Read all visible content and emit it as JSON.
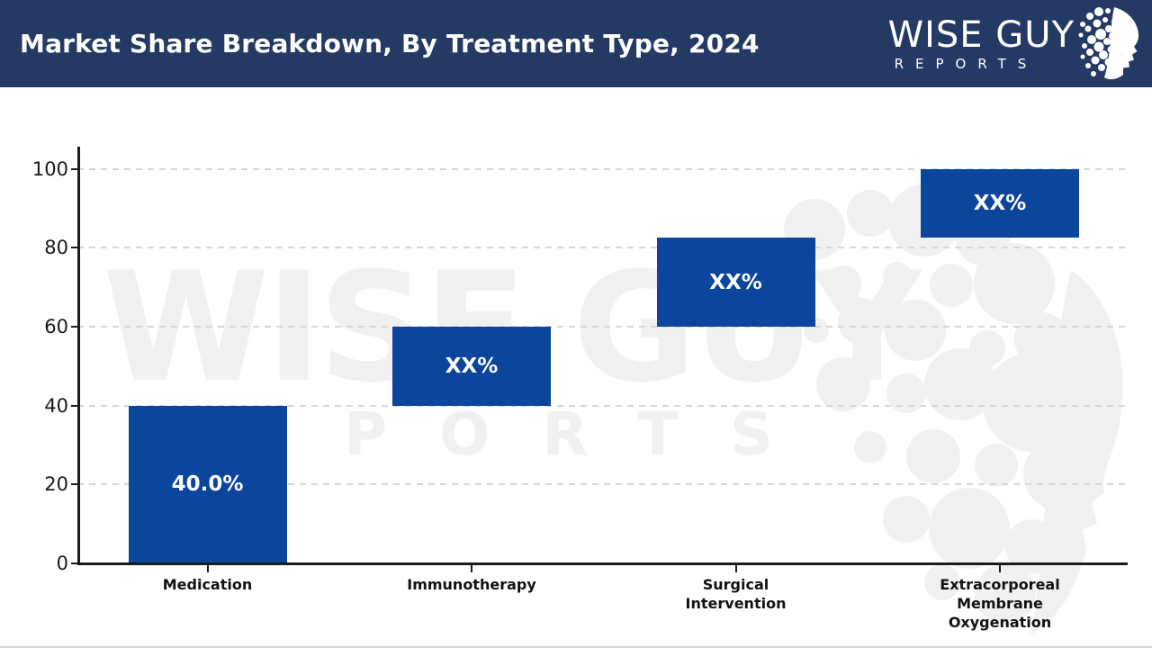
{
  "header": {
    "title": "Market Share Breakdown, By Treatment Type, 2024",
    "bg_color": "#243a64",
    "logo": {
      "name": "WISE GUY",
      "subtitle": "REPORTS"
    }
  },
  "watermark": {
    "line1": "WISE GUY",
    "line2": "REPORTS"
  },
  "chart_data": {
    "type": "bar",
    "subtype": "waterfall",
    "title": "Market Share Breakdown, By Treatment Type, 2024",
    "categories": [
      "Medication",
      "Immunotherapy",
      "Surgical\nIntervention",
      "Extracorporeal\nMembrane\nOxygenation"
    ],
    "bar_labels": [
      "40.0%",
      "XX%",
      "XX%",
      "XX%"
    ],
    "segments": [
      {
        "start": 0,
        "end": 40
      },
      {
        "start": 40,
        "end": 60
      },
      {
        "start": 60,
        "end": 82.5
      },
      {
        "start": 82.5,
        "end": 100
      }
    ],
    "values_visible": [
      40.0,
      null,
      null,
      null
    ],
    "yticks": [
      0,
      20,
      40,
      60,
      80,
      100
    ],
    "ylim": [
      0,
      105
    ],
    "xlabel": "",
    "ylabel": "",
    "grid": "horizontal-dashed",
    "legend": "none",
    "bar_color": "#0c459c",
    "grid_color": "#d7d7d7",
    "axis_color": "#1c1c1c"
  }
}
